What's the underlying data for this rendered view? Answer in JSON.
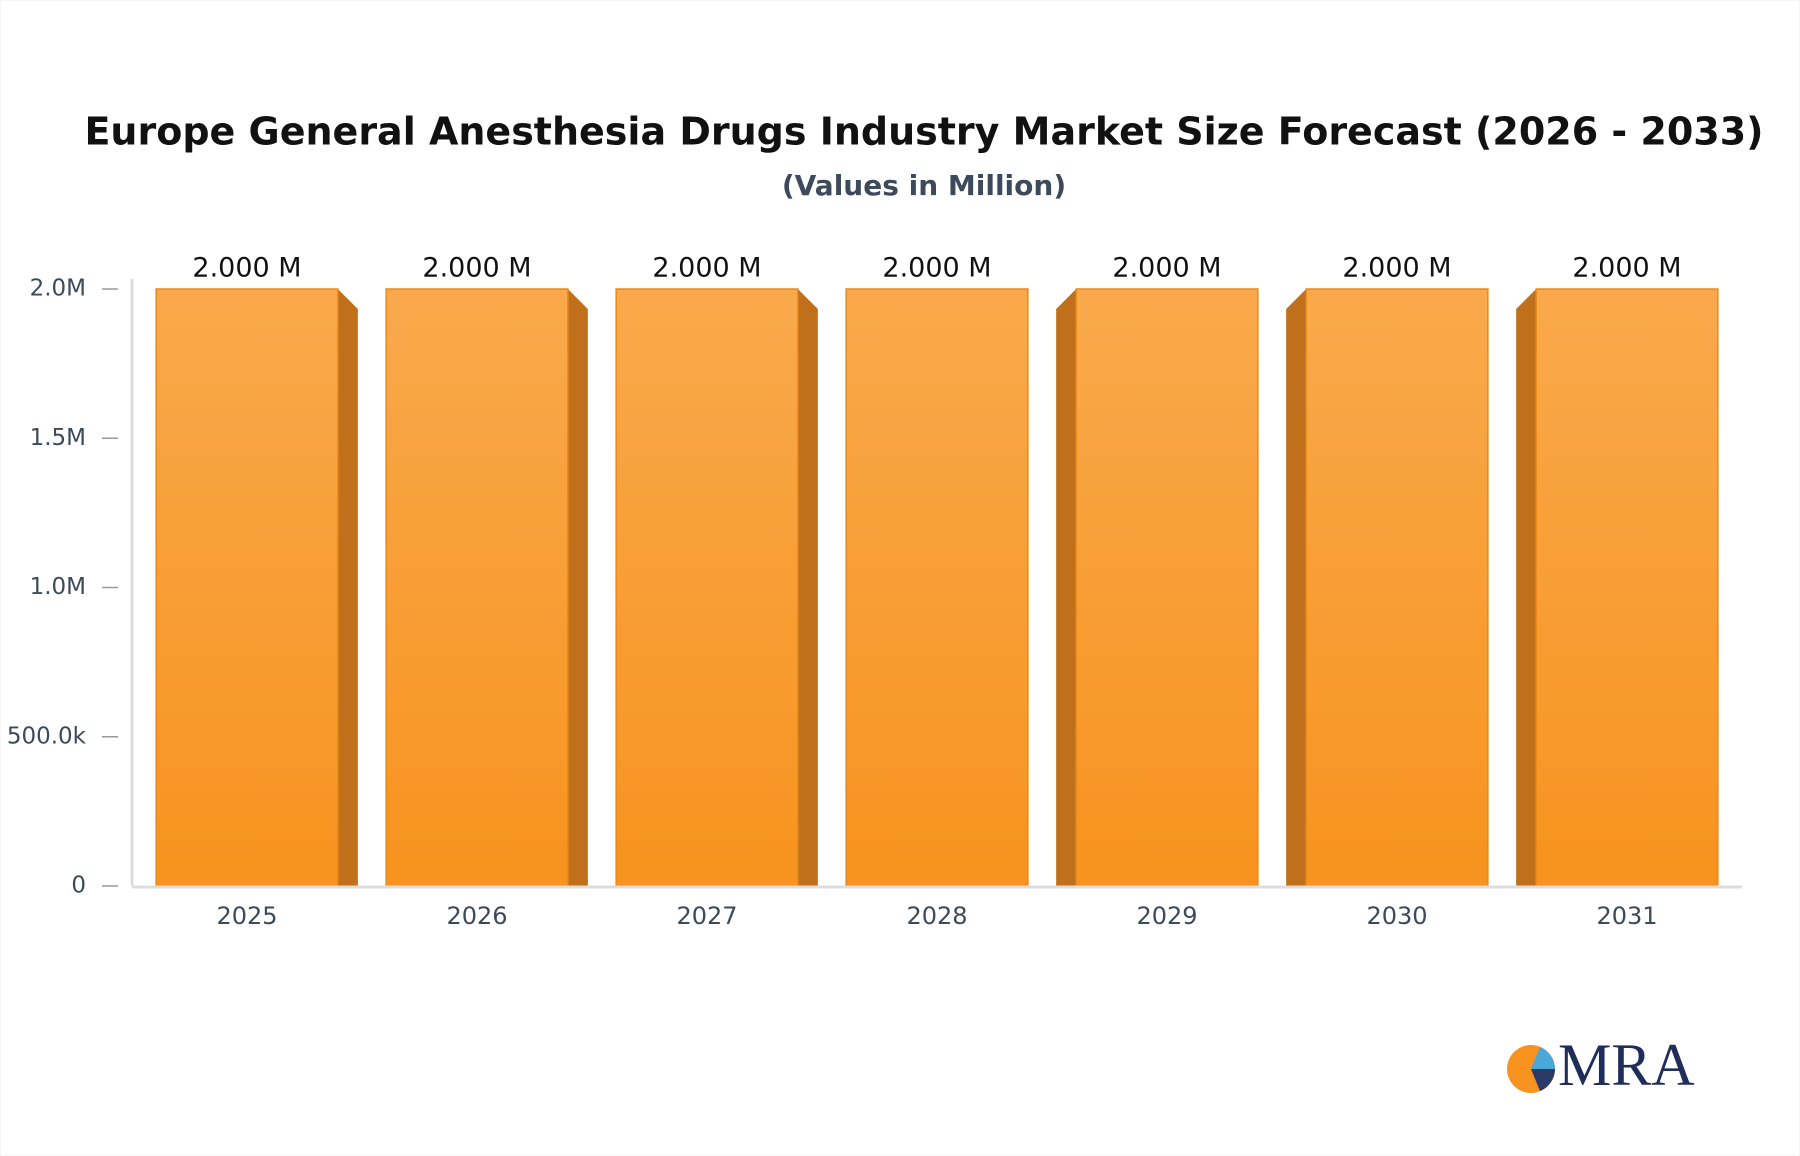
{
  "chart_data": {
    "type": "bar",
    "title": "Europe General Anesthesia Drugs Industry Market Size Forecast (2026 - 2033)",
    "subtitle": "(Values in Million)",
    "categories": [
      "2025",
      "2026",
      "2027",
      "2028",
      "2029",
      "2030",
      "2031"
    ],
    "values": [
      2000000,
      2000000,
      2000000,
      2000000,
      2000000,
      2000000,
      2000000
    ],
    "value_labels": [
      "2.000 M",
      "2.000 M",
      "2.000 M",
      "2.000 M",
      "2.000 M",
      "2.000 M",
      "2.000 M"
    ],
    "color": "#f7931e",
    "ylim": [
      0,
      2000000
    ],
    "yticks": [
      0,
      {
        "value": 500000,
        "label": "500.0k"
      },
      {
        "value": 1000000,
        "label": "1.0M"
      },
      {
        "value": 1500000,
        "label": "1.5M"
      },
      {
        "value": 2000000,
        "label": "2.0M"
      }
    ],
    "grid": false
  },
  "logo": "MRA"
}
